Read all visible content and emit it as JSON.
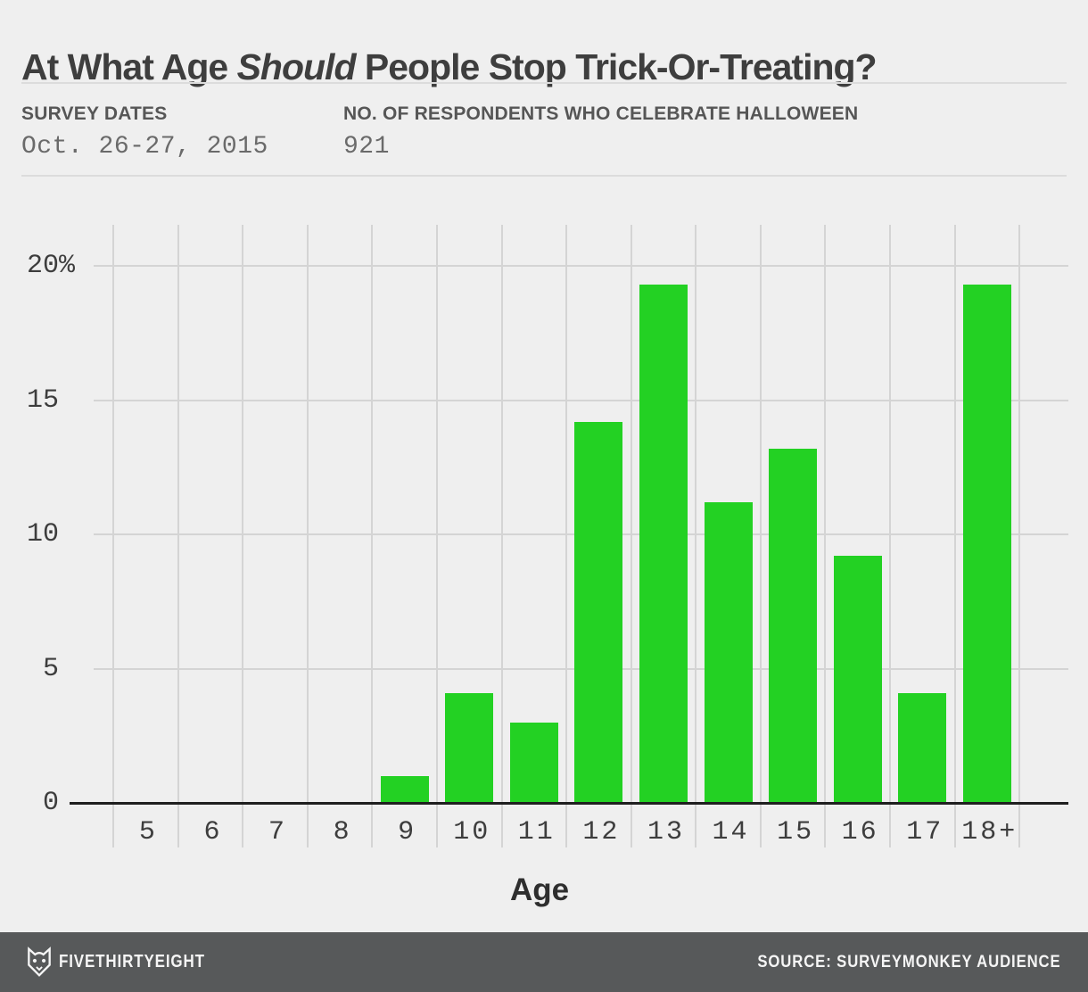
{
  "colors": {
    "background": "#efefef",
    "bar": "#23d123",
    "grid": "#d4d4d4",
    "baseline": "#1f1f1f",
    "title_text": "#3e3e3e",
    "meta_label_text": "#565656",
    "meta_value_text": "#6a6a6a",
    "tick_text": "#3d3d3d",
    "footer_bg": "#57595a",
    "footer_text": "#f5f5f5"
  },
  "header": {
    "title_prefix": "At What Age ",
    "title_emphasis": "Should",
    "title_suffix": " People Stop Trick-Or-Treating?",
    "meta": {
      "survey_dates_label": "SURVEY DATES",
      "survey_dates_value": "Oct. 26-27, 2015",
      "respondents_label": "NO. OF RESPONDENTS WHO CELEBRATE HALLOWEEN",
      "respondents_value": "921"
    }
  },
  "chart_data": {
    "type": "bar",
    "title": "At What Age Should People Stop Trick-Or-Treating?",
    "categories": [
      "5",
      "6",
      "7",
      "8",
      "9",
      "10",
      "11",
      "12",
      "13",
      "14",
      "15",
      "16",
      "17",
      "18+"
    ],
    "values": [
      0,
      0,
      0,
      0,
      1.0,
      4.1,
      3.0,
      14.2,
      19.3,
      11.2,
      13.2,
      9.2,
      4.1,
      19.3
    ],
    "xlabel": "Age",
    "ylabel": "",
    "ylim": [
      0,
      20
    ],
    "y_ticks": [
      {
        "value": 20,
        "label": "20",
        "suffix": "%"
      },
      {
        "value": 15,
        "label": "15",
        "suffix": ""
      },
      {
        "value": 10,
        "label": "10",
        "suffix": ""
      },
      {
        "value": 5,
        "label": "5",
        "suffix": ""
      },
      {
        "value": 0,
        "label": "0",
        "suffix": ""
      }
    ],
    "grid": "both",
    "legend": "none",
    "bar_color": "#23d123"
  },
  "footer": {
    "brand": "FIVETHIRTYEIGHT",
    "logo_icon": "fivethirtyeight-fox-logo",
    "source": "SOURCE: SURVEYMONKEY AUDIENCE"
  }
}
